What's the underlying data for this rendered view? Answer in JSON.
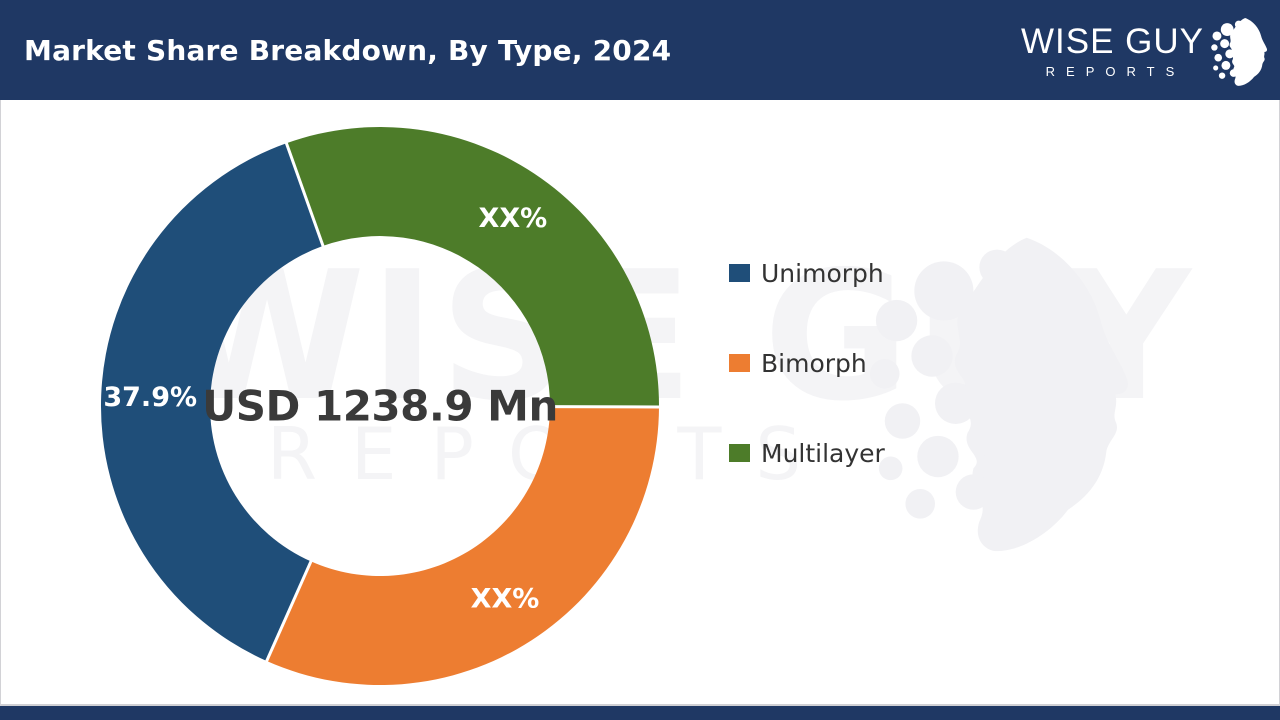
{
  "header": {
    "title": "Market Share Breakdown, By Type, 2024",
    "logo": {
      "primary": "WISE GUY",
      "secondary": "REPORTS"
    }
  },
  "watermark": {
    "primary": "WISE GUY",
    "secondary": "REPORTS"
  },
  "chart_data": {
    "type": "pie",
    "subtype": "donut",
    "title": "Market Share Breakdown, By Type, 2024",
    "center_label": "USD 1238.9 Mn",
    "units": "percent share",
    "start_angle_deg": -19.6,
    "direction": "clockwise",
    "slices": [
      {
        "name": "Multilayer",
        "label": "XX%",
        "pct": 30.5,
        "color": "#4d7c29"
      },
      {
        "name": "Bimorph",
        "label": "XX%",
        "pct": 31.6,
        "color": "#ed7d31"
      },
      {
        "name": "Unimorph",
        "label": "37.9%",
        "pct": 37.9,
        "color": "#1f4e79"
      }
    ],
    "legend": [
      {
        "label": "Unimorph",
        "color": "#1f4e79"
      },
      {
        "label": "Bimorph",
        "color": "#ed7d31"
      },
      {
        "label": "Multilayer",
        "color": "#4d7c29"
      }
    ],
    "legend_position": "right"
  },
  "colors": {
    "header_bg": "#1f3864",
    "footer_bg": "#1f3864",
    "slice_gap": "#ffffff",
    "center_text": "#3a3a3a",
    "legend_text": "#333333",
    "watermark": "#f2f2f4"
  }
}
